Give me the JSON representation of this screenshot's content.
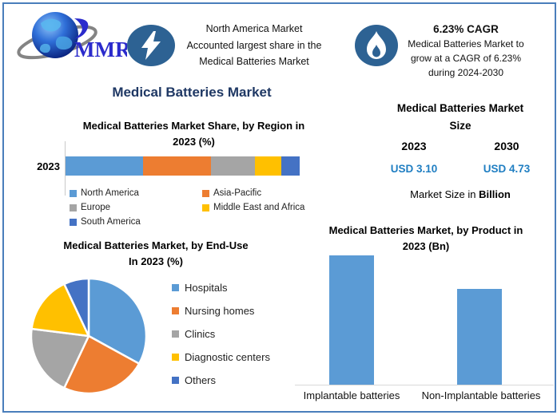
{
  "page": {
    "border_color": "#4a7ebb",
    "background": "#ffffff"
  },
  "logo": {
    "text": "MMR",
    "text_color": "#2b2bcc"
  },
  "header": {
    "highlight_card": {
      "icon": "lightning-bolt",
      "icon_bg": "#2d6293",
      "lines": [
        "North America Market",
        "Accounted largest share in the",
        "Medical Batteries Market"
      ]
    },
    "cagr_card": {
      "icon": "flame",
      "icon_bg": "#2d6293",
      "headline": "6.23% CAGR",
      "lines": [
        "Medical Batteries Market to",
        "grow at a CAGR of 6.23%",
        "during 2024-2030"
      ]
    }
  },
  "main_title": {
    "text": "Medical Batteries Market",
    "color": "#1f3864"
  },
  "market_size": {
    "title_lines": [
      "Medical Batteries Market",
      "Size"
    ],
    "columns": [
      {
        "year": "2023",
        "value": "USD 3.10"
      },
      {
        "year": "2030",
        "value": "USD 4.73"
      }
    ],
    "caption_regular": "Market Size in ",
    "caption_bold": "Billion",
    "value_color": "#1f7ec2"
  },
  "chart_data": [
    {
      "id": "region_share",
      "type": "bar",
      "subtype": "horizontal-stacked",
      "title": "Medical Batteries Market Share, by Region in 2023 (%)",
      "title_lines": [
        "Medical Batteries Market Share, by Region in",
        "2023 (%)"
      ],
      "categories": [
        "2023"
      ],
      "series": [
        {
          "name": "North America",
          "values": [
            33
          ],
          "color": "#5b9bd5"
        },
        {
          "name": "Asia-Pacific",
          "values": [
            29
          ],
          "color": "#ed7d31"
        },
        {
          "name": "Europe",
          "values": [
            19
          ],
          "color": "#a5a5a5"
        },
        {
          "name": "Middle East and Africa",
          "values": [
            11
          ],
          "color": "#ffc000"
        },
        {
          "name": "South America",
          "values": [
            8
          ],
          "color": "#4472c4"
        }
      ],
      "xlim": [
        0,
        100
      ],
      "grid": false,
      "legend_position": "bottom",
      "note": "segment percentages estimated from widths; no data labels shown"
    },
    {
      "id": "end_use",
      "type": "pie",
      "title": "Medical Batteries Market, by End-Use In 2023 (%)",
      "title_lines": [
        "Medical Batteries Market, by End-Use",
        "In 2023 (%)"
      ],
      "labels": [
        "Hospitals",
        "Nursing homes",
        "Clinics",
        "Diagnostic centers",
        "Others"
      ],
      "values": [
        33,
        24,
        20,
        16,
        7
      ],
      "colors": [
        "#5b9bd5",
        "#ed7d31",
        "#a5a5a5",
        "#ffc000",
        "#4472c4"
      ],
      "start_angle": "top",
      "direction": "clockwise",
      "legend_position": "right",
      "note": "slice percentages estimated from angles; no data labels shown"
    },
    {
      "id": "by_product",
      "type": "bar",
      "title": "Medical Batteries Market, by Product in 2023 (Bn)",
      "title_lines": [
        "Medical Batteries Market, by Product in",
        "2023 (Bn)"
      ],
      "categories": [
        "Implantable batteries",
        "Non-Implantable batteries"
      ],
      "values": [
        1.78,
        1.32
      ],
      "color": "#5b9bd5",
      "ylim": [
        0,
        2
      ],
      "grid": false,
      "note": "values estimated from bar heights; axis not labeled"
    }
  ]
}
